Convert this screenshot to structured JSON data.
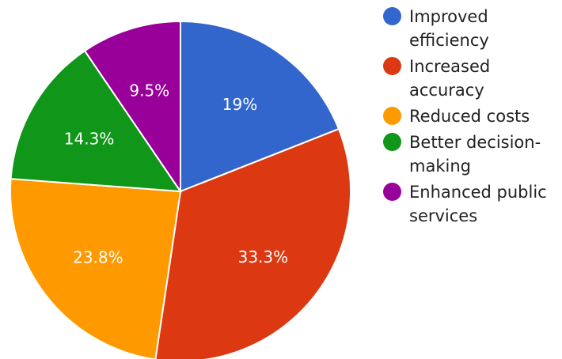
{
  "chart_data": {
    "type": "pie",
    "slices": [
      {
        "label": "Improved efficiency",
        "value": 19,
        "value_label": "19%",
        "color": "#3366cc"
      },
      {
        "label": "Increased accuracy",
        "value": 33.3,
        "value_label": "33.3%",
        "color": "#dc3912"
      },
      {
        "label": "Reduced costs",
        "value": 23.8,
        "value_label": "23.8%",
        "color": "#ff9900"
      },
      {
        "label": "Better decision-making",
        "value": 14.3,
        "value_label": "14.3%",
        "color": "#109618"
      },
      {
        "label": "Enhanced public services",
        "value": 9.5,
        "value_label": "9.5%",
        "color": "#990099"
      }
    ],
    "legend_position": "right"
  }
}
